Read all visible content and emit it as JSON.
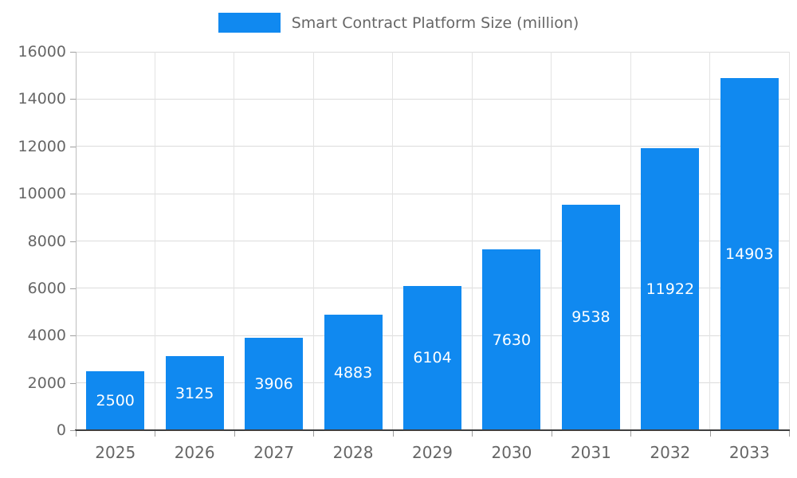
{
  "colors": {
    "bar": "#1089f0",
    "axis_text": "#666666",
    "grid": "#dcdcdc",
    "axis_line": "#3f3f3f",
    "value_label": "#ffffff"
  },
  "legend": {
    "label": "Smart Contract Platform Size (million)"
  },
  "chart_data": {
    "type": "bar",
    "title": "Smart Contract Platform Size (million)",
    "categories": [
      "2025",
      "2026",
      "2027",
      "2028",
      "2029",
      "2030",
      "2031",
      "2032",
      "2033"
    ],
    "values": [
      2500,
      3125,
      3906,
      4883,
      6104,
      7630,
      9538,
      11922,
      14903
    ],
    "xlabel": "",
    "ylabel": "",
    "ylim": [
      0,
      16000
    ],
    "yticks": [
      0,
      2000,
      4000,
      6000,
      8000,
      10000,
      12000,
      14000,
      16000
    ],
    "grid": true,
    "legend_position": "top",
    "value_labels": "centered-in-bar"
  }
}
